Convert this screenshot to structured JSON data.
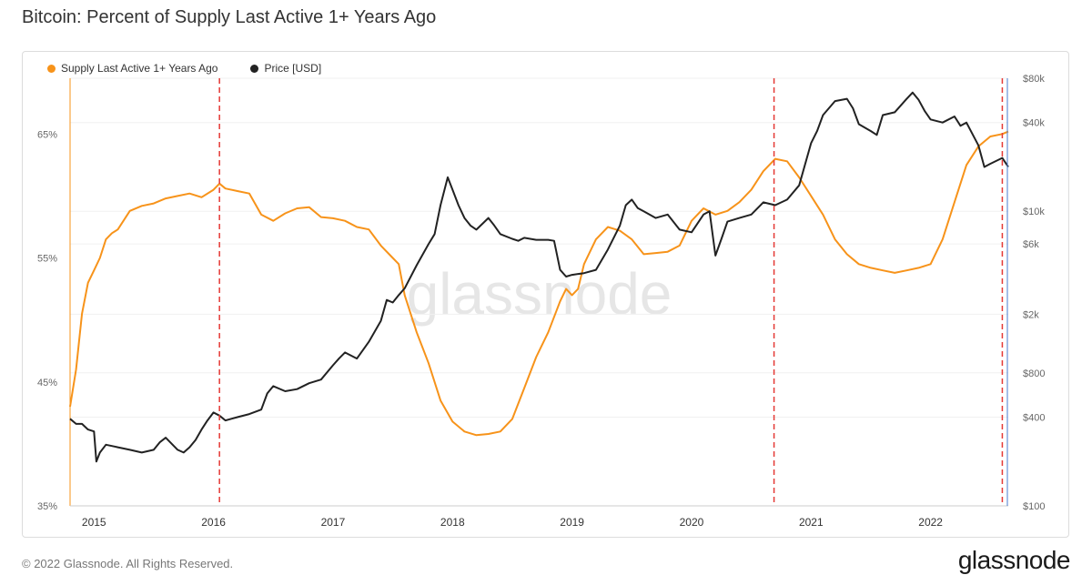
{
  "header": {
    "title": "Bitcoin: Percent of Supply Last Active 1+ Years Ago"
  },
  "footer": {
    "copyright": "© 2022 Glassnode. All Rights Reserved.",
    "brand": "glassnode"
  },
  "chart_data": {
    "type": "line",
    "title": "Bitcoin: Percent of Supply Last Active 1+ Years Ago",
    "watermark": "glassnode",
    "legend": [
      {
        "name": "Supply Last Active 1+ Years Ago",
        "color": "#f7931a"
      },
      {
        "name": "Price [USD]",
        "color": "#222222"
      }
    ],
    "legend_position": "top-left",
    "x_range": [
      2014.8,
      2022.65
    ],
    "x_ticks": [
      {
        "value": 2015,
        "label": "2015"
      },
      {
        "value": 2016,
        "label": "2016"
      },
      {
        "value": 2017,
        "label": "2017"
      },
      {
        "value": 2018,
        "label": "2018"
      },
      {
        "value": 2019,
        "label": "2019"
      },
      {
        "value": 2020,
        "label": "2020"
      },
      {
        "value": 2021,
        "label": "2021"
      },
      {
        "value": 2022,
        "label": "2022"
      }
    ],
    "y_left": {
      "range": [
        35,
        69.5
      ],
      "ticks": [
        {
          "value": 35,
          "label": "35%"
        },
        {
          "value": 45,
          "label": "45%"
        },
        {
          "value": 55,
          "label": "55%"
        },
        {
          "value": 65,
          "label": "65%"
        }
      ]
    },
    "y_right": {
      "scale": "log",
      "range": [
        100,
        80000
      ],
      "ticks": [
        {
          "value": 100,
          "label": "$100"
        },
        {
          "value": 400,
          "label": "$400"
        },
        {
          "value": 800,
          "label": "$800"
        },
        {
          "value": 2000,
          "label": "$2k"
        },
        {
          "value": 6000,
          "label": "$6k"
        },
        {
          "value": 10000,
          "label": "$10k"
        },
        {
          "value": 40000,
          "label": "$40k"
        },
        {
          "value": 80000,
          "label": "$80k"
        }
      ]
    },
    "vlines": [
      2016.05,
      2020.69,
      2022.6
    ],
    "series": [
      {
        "name": "Supply Last Active 1+ Years Ago",
        "axis": "left",
        "color": "#f7931a",
        "x": [
          2014.8,
          2014.85,
          2014.9,
          2014.95,
          2015.0,
          2015.05,
          2015.1,
          2015.15,
          2015.2,
          2015.3,
          2015.4,
          2015.5,
          2015.6,
          2015.7,
          2015.8,
          2015.9,
          2016.0,
          2016.05,
          2016.1,
          2016.2,
          2016.3,
          2016.4,
          2016.5,
          2016.6,
          2016.7,
          2016.8,
          2016.9,
          2017.0,
          2017.1,
          2017.2,
          2017.3,
          2017.4,
          2017.5,
          2017.55,
          2017.6,
          2017.7,
          2017.8,
          2017.9,
          2018.0,
          2018.1,
          2018.2,
          2018.3,
          2018.4,
          2018.5,
          2018.6,
          2018.7,
          2018.8,
          2018.9,
          2018.95,
          2019.0,
          2019.05,
          2019.1,
          2019.2,
          2019.3,
          2019.4,
          2019.5,
          2019.6,
          2019.7,
          2019.8,
          2019.9,
          2020.0,
          2020.1,
          2020.2,
          2020.3,
          2020.4,
          2020.5,
          2020.6,
          2020.7,
          2020.8,
          2020.9,
          2021.0,
          2021.1,
          2021.2,
          2021.3,
          2021.4,
          2021.5,
          2021.6,
          2021.7,
          2021.8,
          2021.9,
          2022.0,
          2022.1,
          2022.2,
          2022.3,
          2022.4,
          2022.5,
          2022.6,
          2022.65
        ],
        "values": [
          43.0,
          46.0,
          50.5,
          53.0,
          54.0,
          55.0,
          56.5,
          57.0,
          57.3,
          58.8,
          59.2,
          59.4,
          59.8,
          60.0,
          60.2,
          59.9,
          60.5,
          61.0,
          60.6,
          60.4,
          60.2,
          58.5,
          58.0,
          58.6,
          59.0,
          59.1,
          58.3,
          58.2,
          58.0,
          57.5,
          57.3,
          56.0,
          55.0,
          54.5,
          52.0,
          49.0,
          46.5,
          43.5,
          41.8,
          41.0,
          40.7,
          40.8,
          41.0,
          42.0,
          44.5,
          47.0,
          49.0,
          51.5,
          52.5,
          52.0,
          52.5,
          54.5,
          56.5,
          57.5,
          57.2,
          56.5,
          55.3,
          55.4,
          55.5,
          56.0,
          58.0,
          59.0,
          58.5,
          58.8,
          59.5,
          60.5,
          62.0,
          63.0,
          62.8,
          61.5,
          60.0,
          58.5,
          56.5,
          55.3,
          54.5,
          54.2,
          54.0,
          53.8,
          54.0,
          54.2,
          54.5,
          56.5,
          59.5,
          62.5,
          64.0,
          64.8,
          65.0,
          65.2
        ]
      },
      {
        "name": "Price [USD]",
        "axis": "right",
        "color": "#222222",
        "x": [
          2014.8,
          2014.85,
          2014.9,
          2014.95,
          2015.0,
          2015.02,
          2015.05,
          2015.1,
          2015.2,
          2015.3,
          2015.4,
          2015.5,
          2015.55,
          2015.6,
          2015.7,
          2015.75,
          2015.8,
          2015.85,
          2015.9,
          2015.95,
          2016.0,
          2016.05,
          2016.1,
          2016.2,
          2016.3,
          2016.4,
          2016.45,
          2016.5,
          2016.6,
          2016.7,
          2016.8,
          2016.9,
          2017.0,
          2017.05,
          2017.1,
          2017.2,
          2017.3,
          2017.4,
          2017.45,
          2017.5,
          2017.55,
          2017.6,
          2017.7,
          2017.8,
          2017.85,
          2017.9,
          2017.96,
          2018.0,
          2018.05,
          2018.1,
          2018.15,
          2018.2,
          2018.3,
          2018.35,
          2018.4,
          2018.5,
          2018.55,
          2018.6,
          2018.7,
          2018.8,
          2018.85,
          2018.9,
          2018.95,
          2019.0,
          2019.1,
          2019.2,
          2019.3,
          2019.4,
          2019.45,
          2019.5,
          2019.55,
          2019.6,
          2019.7,
          2019.8,
          2019.9,
          2020.0,
          2020.1,
          2020.15,
          2020.2,
          2020.25,
          2020.3,
          2020.4,
          2020.5,
          2020.6,
          2020.7,
          2020.8,
          2020.9,
          2021.0,
          2021.05,
          2021.1,
          2021.2,
          2021.3,
          2021.35,
          2021.4,
          2021.5,
          2021.55,
          2021.6,
          2021.7,
          2021.8,
          2021.85,
          2021.9,
          2021.95,
          2022.0,
          2022.1,
          2022.2,
          2022.25,
          2022.3,
          2022.4,
          2022.45,
          2022.5,
          2022.6,
          2022.65
        ],
        "values": [
          390,
          360,
          360,
          330,
          320,
          200,
          230,
          260,
          250,
          240,
          230,
          240,
          270,
          290,
          240,
          230,
          250,
          280,
          330,
          380,
          430,
          410,
          380,
          400,
          420,
          450,
          580,
          650,
          600,
          620,
          680,
          720,
          900,
          1000,
          1100,
          1000,
          1300,
          1800,
          2500,
          2400,
          2700,
          3000,
          4300,
          6000,
          7000,
          11000,
          17000,
          14000,
          11000,
          9000,
          8000,
          7500,
          9000,
          8000,
          7000,
          6500,
          6300,
          6600,
          6400,
          6400,
          6300,
          4000,
          3600,
          3700,
          3800,
          4000,
          5500,
          8000,
          11000,
          12000,
          10500,
          10000,
          9000,
          9500,
          7500,
          7200,
          9500,
          10000,
          5000,
          6500,
          8500,
          9000,
          9500,
          11500,
          11000,
          12000,
          15000,
          29000,
          35000,
          45000,
          56000,
          58000,
          50000,
          39000,
          35000,
          33000,
          45000,
          47000,
          58000,
          64000,
          57000,
          48000,
          42000,
          40000,
          44000,
          38000,
          40000,
          28000,
          20000,
          21000,
          23000,
          20000
        ]
      }
    ]
  }
}
